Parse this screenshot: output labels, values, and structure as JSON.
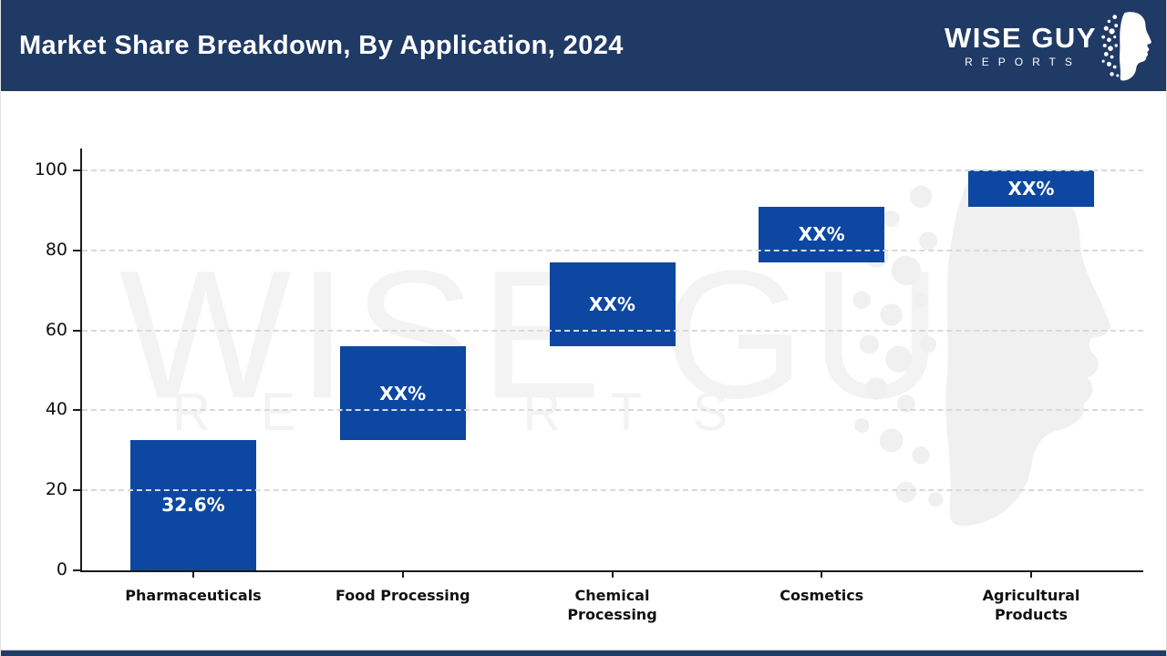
{
  "header": {
    "title": "Market Share Breakdown, By Application, 2024",
    "bg_color": "#203a66",
    "logo": {
      "line1": "WISE GUY",
      "line2": "REPORTS"
    }
  },
  "watermark": {
    "line1": "WISE GUY",
    "line2": "REPORTS"
  },
  "chart_data": {
    "type": "bar",
    "subtype": "waterfall",
    "title": "Market Share Breakdown, By Application, 2024",
    "categories": [
      "Pharmaceuticals",
      "Food Processing",
      "Chemical Processing",
      "Cosmetics",
      "Agricultural Products"
    ],
    "series": [
      {
        "name": "Market Share (%)",
        "segments": [
          {
            "start": 0,
            "end": 32.6,
            "label": "32.6%"
          },
          {
            "start": 32.6,
            "end": 56,
            "label": "XX%"
          },
          {
            "start": 56,
            "end": 77,
            "label": "XX%"
          },
          {
            "start": 77,
            "end": 91,
            "label": "XX%"
          },
          {
            "start": 91,
            "end": 100,
            "label": "XX%"
          }
        ]
      }
    ],
    "xlabel": "",
    "ylabel": "",
    "yticks": [
      0,
      20,
      40,
      60,
      80,
      100
    ],
    "ylim": [
      0,
      105
    ],
    "grid": "horizontal-dashed",
    "legend": "none",
    "bar_color": "#0d47a1",
    "bar_label_color": "#ffffff",
    "axis_color": "#1a1a1a",
    "gridline_color": "#d9d9d9"
  }
}
